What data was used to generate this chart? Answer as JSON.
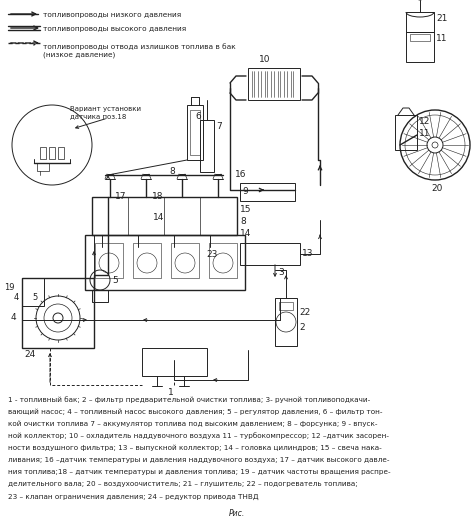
{
  "background_color": "#ffffff",
  "legend_items": [
    {
      "label": "топливопроводы низкого давления"
    },
    {
      "label": "топливопроводы высокого давления"
    },
    {
      "label": "топливопроводы отвода излишков топлива в бак"
    },
    {
      "label": "(низкое давление)"
    }
  ],
  "caption_lines": [
    "1 - топливный бак; 2 – фильтр предварительной очистки топлива; 3- ручной топливоподкачи-",
    "вающий насос; 4 – топливный насос высокого давления; 5 – регулятор давления, 6 – фильтр тон-",
    "кой очистки топлива 7 – аккумулятор топлива под высоким давлением; 8 – форсунка; 9 - впуск-",
    "ной коллектор; 10 – охладитель наддувочного воздуха 11 – турбокомпрессор; 12 –датчик засорен-",
    "ности воздушного фильтра; 13 – выпускной коллектор; 14 – головка цилиндров; 15 – свеча нака-",
    "ливания; 16 –датчик температуры и давления наддувочного воздуха; 17 – датчик высокого давле-",
    "ния топлива;18 – датчик температуры и давления топлива; 19 – датчик частоты вращения распре-",
    "делительного вала; 20 – воздухоочиститель; 21 – глушитель; 22 – подогреватель топлива;",
    "23 – клапан ограничения давления; 24 – редуктор привода ТНВД"
  ],
  "fig_width": 4.74,
  "fig_height": 5.21,
  "dpi": 100
}
